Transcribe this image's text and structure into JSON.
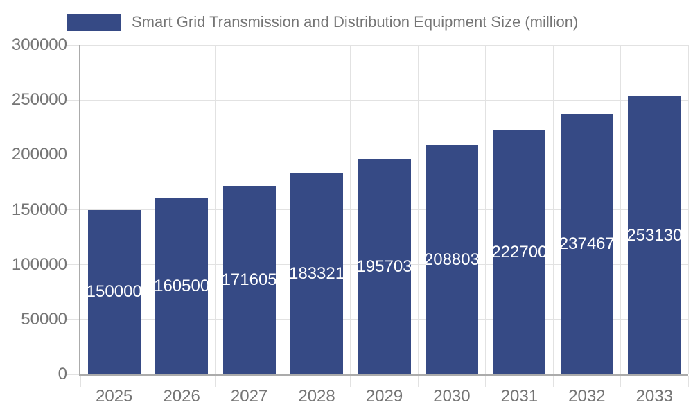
{
  "legend": {
    "label": "Smart Grid Transmission and Distribution Equipment Size (million)"
  },
  "chart_data": {
    "type": "bar",
    "title": "Smart Grid Transmission and Distribution Equipment Size (million)",
    "categories": [
      "2025",
      "2026",
      "2027",
      "2028",
      "2029",
      "2030",
      "2031",
      "2032",
      "2033"
    ],
    "values": [
      150000,
      160500,
      171605,
      183321,
      195703,
      208803,
      222700,
      237467,
      253130
    ],
    "xlabel": "",
    "ylabel": "",
    "ylim": [
      0,
      300000
    ],
    "yticks": [
      0,
      50000,
      100000,
      150000,
      200000,
      250000,
      300000
    ],
    "grid": true,
    "legend_position": "top-left",
    "bar_color": "#364A85",
    "bar_label_color": "#FFFFFF",
    "axis_text_color": "#757575",
    "grid_color": "#E2E2E2",
    "axis_line_color": "#ABABAB",
    "background_color": "#FFFFFF"
  }
}
